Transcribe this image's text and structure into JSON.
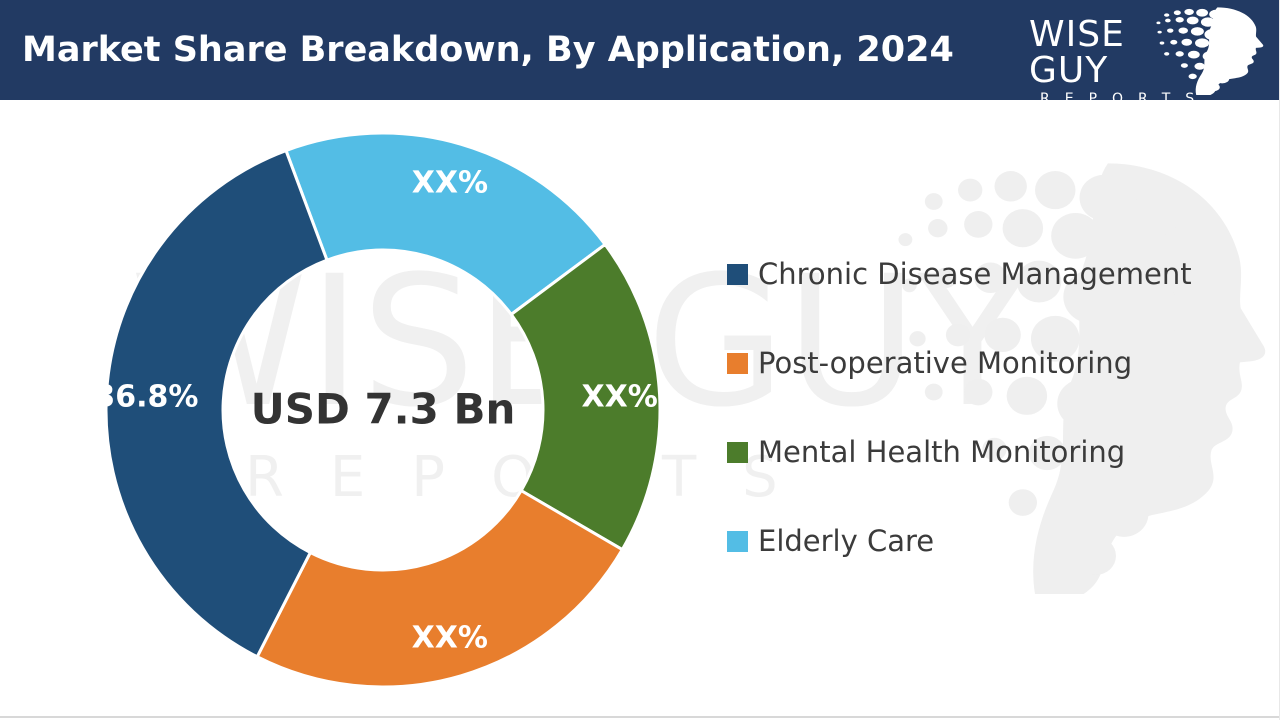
{
  "header": {
    "title": "Market Share Breakdown, By Application, 2024",
    "bg_color": "#223A63",
    "logo": {
      "line1": "WISE GUY",
      "line2": "REPORTS"
    }
  },
  "watermark": {
    "line1": "WISE GUY",
    "line2": "REPORTS",
    "color": "#F0F0F0"
  },
  "chart_data": {
    "type": "pie",
    "title": "Market Share Breakdown, By Application, 2024",
    "center_label": "USD 7.3 Bn",
    "legend_position": "right",
    "donut_hole_ratio": 0.58,
    "start_angle_deg": -20.5,
    "slices": [
      {
        "name": "Chronic Disease Management",
        "value": 36.8,
        "label": "36.8%",
        "color": "#1F4E79"
      },
      {
        "name": "Post-operative Monitoring",
        "value": 24.1,
        "label": "XX%",
        "color": "#E87E2D"
      },
      {
        "name": "Mental Health Monitoring",
        "value": 18.6,
        "label": "XX%",
        "color": "#4C7C2B"
      },
      {
        "name": "Elderly Care",
        "value": 20.5,
        "label": "XX%",
        "color": "#53BDE5"
      }
    ]
  }
}
